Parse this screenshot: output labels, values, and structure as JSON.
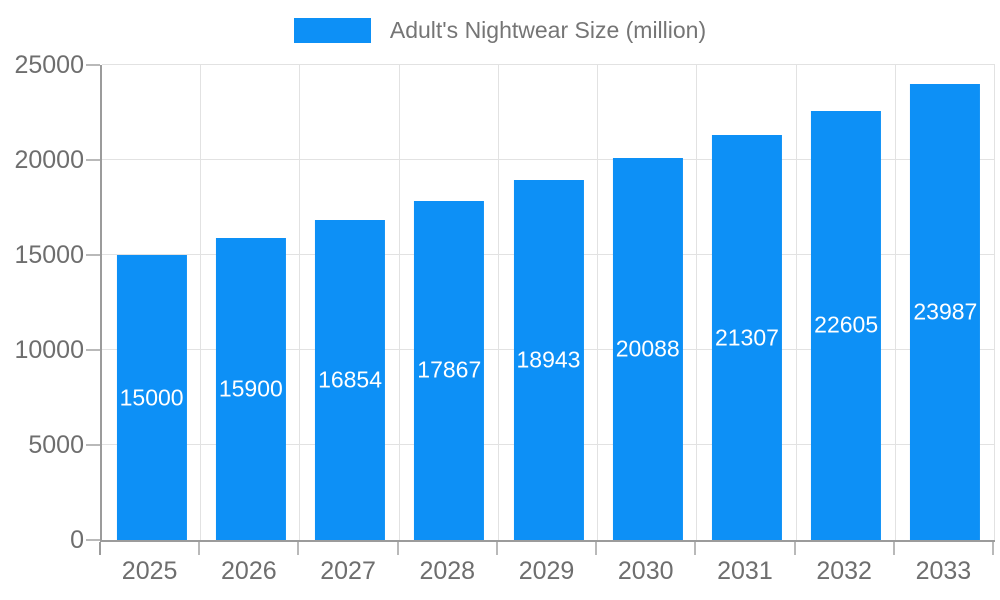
{
  "chart_data": {
    "type": "bar",
    "title": "Adult's Nightwear Size (million)",
    "legend": {
      "label": "Adult's Nightwear Size (million)",
      "position": "top-center"
    },
    "categories": [
      "2025",
      "2026",
      "2027",
      "2028",
      "2029",
      "2030",
      "2031",
      "2032",
      "2033"
    ],
    "values": [
      15000,
      15900,
      16854,
      17867,
      18943,
      20088,
      21307,
      22605,
      23987
    ],
    "xlabel": "",
    "ylabel": "",
    "ylim": [
      0,
      25000
    ],
    "yticks": [
      0,
      5000,
      10000,
      15000,
      20000,
      25000
    ],
    "grid": true,
    "value_label_placement": "inside-bar-center",
    "colors": {
      "bar": "#0D90F6",
      "grid": "#E2E2E2",
      "axis": "#9B9B9B",
      "tick": "#B9B9B9",
      "axis_text": "#6E6E6E",
      "legend_text": "#757575",
      "value_label_text": "#FFFFFF",
      "background": "#FFFFFF"
    }
  }
}
